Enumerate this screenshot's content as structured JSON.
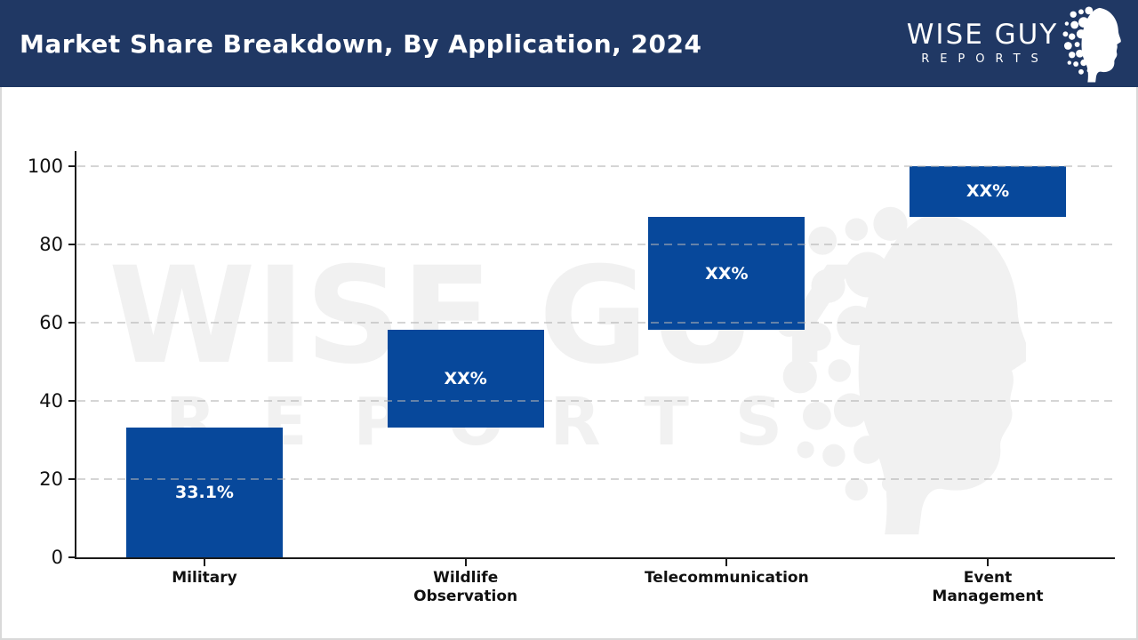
{
  "header": {
    "title": "Market Share Breakdown, By Application, 2024",
    "logo": {
      "line1": "WISE GUY",
      "line2": "REPORTS"
    }
  },
  "watermark": {
    "line1": "WISE GUY",
    "line2": "REPORTS"
  },
  "colors": {
    "header_bg": "#203864",
    "bar": "#07489B",
    "bar_label": "#ffffff",
    "watermark": "#f1f1f1",
    "grid": "#d2d2d2",
    "axis": "#1a1a1a"
  },
  "chart_data": {
    "type": "bar",
    "subtype": "waterfall",
    "title": "Market Share Breakdown, By Application, 2024",
    "categories": [
      "Military",
      "Wildlife Observation",
      "Telecommunication",
      "Event Management"
    ],
    "tick_labels": [
      "Military",
      "Wildlife\nObservation",
      "Telecommunication",
      "Event Management"
    ],
    "segments": [
      {
        "category": "Military",
        "start": 0,
        "end": 33.1,
        "label": "33.1%"
      },
      {
        "category": "Wildlife Observation",
        "start": 33.1,
        "end": 58.1,
        "label": "XX%"
      },
      {
        "category": "Telecommunication",
        "start": 58.1,
        "end": 87.1,
        "label": "XX%"
      },
      {
        "category": "Event Management",
        "start": 87.1,
        "end": 100,
        "label": "XX%"
      }
    ],
    "xlabel": "",
    "ylabel": "",
    "y_ticks": [
      0,
      20,
      40,
      60,
      80,
      100
    ],
    "ylim": [
      0,
      104
    ],
    "grid": "horizontal-dashed",
    "legend": "none"
  }
}
